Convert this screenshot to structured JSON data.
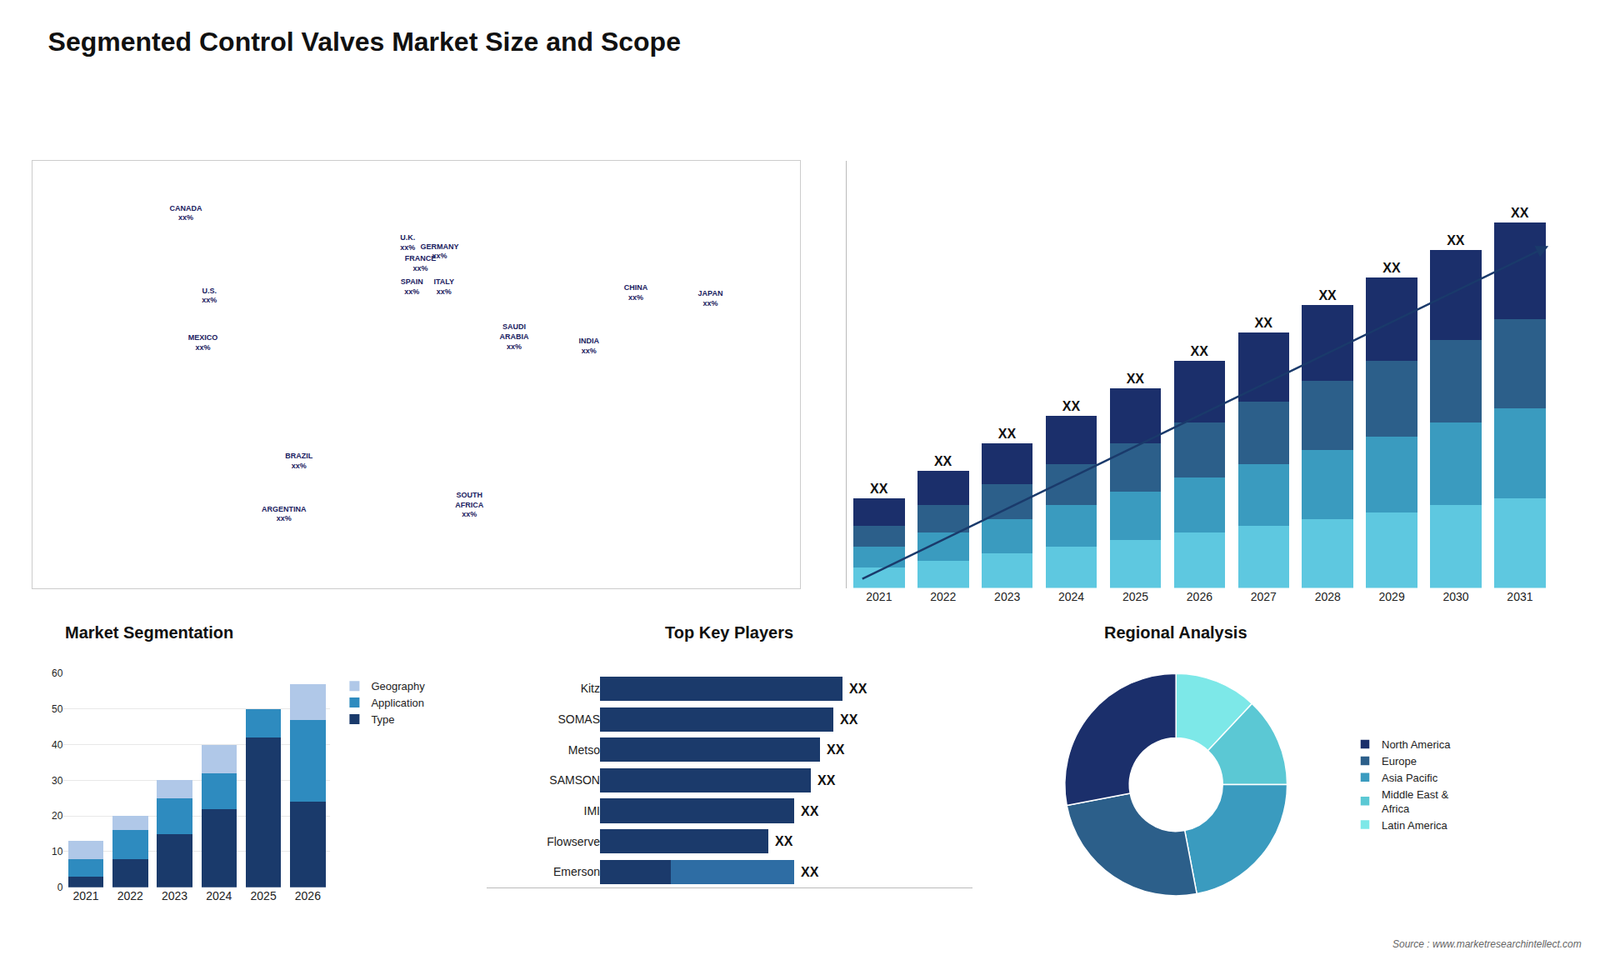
{
  "title": "Segmented Control Valves Market Size and Scope",
  "source": "Source : www.marketresearchintellect.com",
  "chart_data": [
    {
      "type": "scatter",
      "x": [
        -108,
        -97,
        -100,
        -55,
        -62,
        -4,
        2,
        11,
        -2,
        13,
        46,
        25,
        81,
        103,
        138
      ],
      "y": [
        67,
        39,
        23,
        -17,
        -35,
        57,
        50,
        54,
        42,
        42,
        25,
        -32,
        22,
        40,
        38
      ],
      "labels": [
        "CANADA\nxx%",
        "U.S.\nxx%",
        "MEXICO\nxx%",
        "BRAZIL\nxx%",
        "ARGENTINA\nxx%",
        "U.K.\nxx%",
        "FRANCE\nxx%",
        "GERMANY\nxx%",
        "SPAIN\nxx%",
        "ITALY\nxx%",
        "SAUDI\nARABIA\nxx%",
        "SOUTH\nAFRICA\nxx%",
        "INDIA\nxx%",
        "CHINA\nxx%",
        "JAPAN\nxx%"
      ],
      "color": "#1a2060",
      "xlim": [
        -180,
        180
      ],
      "ylim": [
        -60,
        85
      ],
      "tick_labels": false
    },
    {
      "type": "bar",
      "stacked": true,
      "categories": [
        "2021",
        "2022",
        "2023",
        "2024",
        "2025",
        "2026",
        "2027",
        "2028",
        "2029",
        "2030",
        "2031"
      ],
      "series": [
        {
          "color": "#5ec8e0",
          "values": [
            1.5,
            2.0,
            2.5,
            3.0,
            3.5,
            4.0,
            4.5,
            5.0,
            5.5,
            6.0,
            6.5
          ]
        },
        {
          "color": "#3a9bbf",
          "values": [
            1.5,
            2.0,
            2.5,
            3.0,
            3.5,
            4.0,
            4.5,
            5.0,
            5.5,
            6.0,
            6.5
          ]
        },
        {
          "color": "#2c5f8a",
          "values": [
            1.5,
            2.0,
            2.5,
            3.0,
            3.5,
            4.0,
            4.5,
            5.0,
            5.5,
            6.0,
            6.5
          ]
        },
        {
          "color": "#1b2f6b",
          "values": [
            2.0,
            2.5,
            3.0,
            3.5,
            4.0,
            4.5,
            5.0,
            5.5,
            6.0,
            6.5,
            7.0
          ],
          "value_labels": [
            "XX",
            "XX",
            "XX",
            "XX",
            "XX",
            "XX",
            "XX",
            "XX",
            "XX",
            "XX",
            "XX"
          ]
        }
      ],
      "ylim": [
        0,
        31
      ],
      "tick_labels": "x"
    },
    {
      "type": "bar",
      "title": "Market Segmentation",
      "stacked": true,
      "categories": [
        "2021",
        "2022",
        "2023",
        "2024",
        "2025",
        "2026"
      ],
      "series": [
        {
          "name": "Type",
          "color": "#1a3a6b",
          "values": [
            3,
            8,
            15,
            22,
            42,
            24
          ]
        },
        {
          "name": "Application",
          "color": "#2e8bbf",
          "values": [
            5,
            8,
            10,
            10,
            8,
            23
          ]
        },
        {
          "name": "Geography",
          "color": "#b0c8e8",
          "values": [
            5,
            4,
            5,
            8,
            0,
            10
          ]
        }
      ],
      "ylim": [
        0,
        60
      ],
      "yticks": [
        0,
        10,
        20,
        30,
        40,
        50,
        60
      ],
      "grid": true,
      "legend": "upper right"
    },
    {
      "type": "bar",
      "title": "Top Key Players",
      "orientation": "horizontal",
      "stacked": true,
      "categories": [
        "Kitz",
        "SOMAS",
        "Metso",
        "SAMSON",
        "IMI",
        "Flowserve",
        "Emerson"
      ],
      "series": [
        {
          "color": "#1b3a6b",
          "values": [
            75,
            72,
            68,
            65,
            60,
            52,
            22
          ]
        },
        {
          "color": "#2e6da4",
          "values": [
            0,
            0,
            0,
            0,
            0,
            0,
            38
          ],
          "value_labels": [
            "XX",
            "XX",
            "XX",
            "XX",
            "XX",
            "XX",
            "XX"
          ]
        }
      ],
      "xlim": [
        -35,
        115
      ],
      "tick_labels": "y"
    },
    {
      "type": "pie",
      "title": "Regional Analysis",
      "categories": [
        "Latin America",
        "Middle East &\nAfrica",
        "Asia Pacific",
        "Europe",
        "North America"
      ],
      "values": [
        12,
        13,
        22,
        25,
        28
      ],
      "colors": [
        "#7de8e8",
        "#5bc8d4",
        "#3a9bbf",
        "#2c5f8a",
        "#1b2f6b"
      ],
      "legend": "right"
    }
  ]
}
